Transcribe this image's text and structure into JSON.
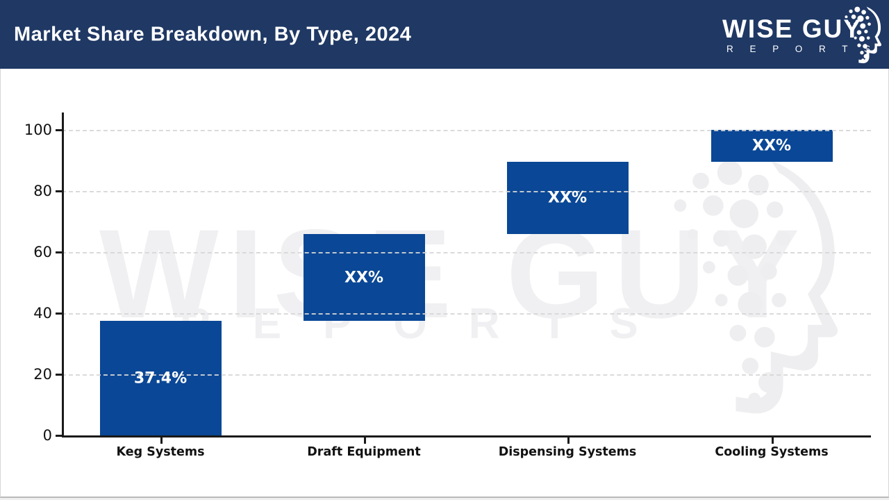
{
  "header": {
    "title": "Market Share Breakdown, By Type, 2024",
    "logo": {
      "line1": "WISE GUY",
      "line2": "R E P O R T S"
    }
  },
  "watermark": {
    "line1": "WISE GUY",
    "line2": "REPORTS"
  },
  "colors": {
    "header_navy": "#1f3864",
    "bar_blue": "#0a4796",
    "gridline_gray": "#d6d6d6",
    "axis_black": "#1a1a1a",
    "watermark_gray": "#f0f0f2"
  },
  "chart_data": {
    "type": "bar",
    "subtype": "waterfall",
    "title": "Market Share Breakdown, By Type, 2024",
    "categories": [
      "Keg Systems",
      "Draft Equipment",
      "Dispensing Systems",
      "Cooling Systems"
    ],
    "segments": [
      {
        "category": "Keg Systems",
        "start": 0,
        "end": 37.4,
        "label": "37.4%"
      },
      {
        "category": "Draft Equipment",
        "start": 37.4,
        "end": 66.0,
        "label": "XX%"
      },
      {
        "category": "Dispensing Systems",
        "start": 66.0,
        "end": 89.5,
        "label": "XX%"
      },
      {
        "category": "Cooling Systems",
        "start": 89.5,
        "end": 100.0,
        "label": "XX%"
      }
    ],
    "ylim": [
      0,
      100
    ],
    "yticks": [
      0,
      20,
      40,
      60,
      80,
      100
    ],
    "xlabel": "",
    "ylabel": "",
    "grid": "horizontal-dashed",
    "legend": "none",
    "bar_color": "#0a4796"
  }
}
